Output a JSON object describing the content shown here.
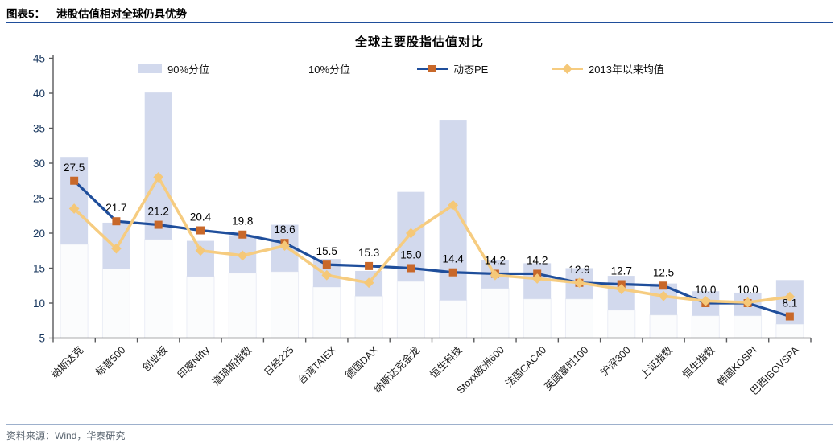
{
  "figure": {
    "tag": "图表5：",
    "title": "港股估值相对全球仍具优势"
  },
  "chart_data": {
    "type": "bar",
    "subtype": "floating-range-bars-with-lines",
    "title": "全球主要股指估值对比",
    "xlabel": "",
    "ylabel": "",
    "ylim": [
      5,
      45
    ],
    "y_ticks": [
      5,
      10,
      15,
      20,
      25,
      30,
      35,
      40,
      45
    ],
    "grid": false,
    "legend_position": "top",
    "legend": {
      "p90": "90%分位",
      "p10": "10%分位",
      "pe": "动态PE",
      "mean": "2013年以来均值"
    },
    "categories": [
      "纳斯达克",
      "标普500",
      "创业板",
      "印度Nifty",
      "道琼斯指数",
      "日经225",
      "台湾TAIEX",
      "德国DAX",
      "纳斯达克金龙",
      "恒生科技",
      "Stoxx欧洲600",
      "法国CAC40",
      "英国富时100",
      "沪深300",
      "上证指数",
      "恒生指数",
      "韩国KOSPI",
      "巴西IBOVSPA"
    ],
    "series": [
      {
        "name": "10%分位",
        "role": "range_low",
        "values": [
          18.4,
          14.9,
          19.1,
          13.8,
          14.3,
          14.5,
          12.3,
          11.0,
          13.1,
          10.4,
          12.1,
          10.6,
          10.6,
          9.0,
          8.3,
          8.2,
          8.2,
          7.0
        ]
      },
      {
        "name": "90%分位",
        "role": "range_high",
        "values": [
          30.9,
          21.5,
          40.1,
          18.9,
          19.7,
          21.2,
          16.3,
          14.6,
          25.9,
          36.2,
          16.2,
          15.7,
          15.0,
          13.9,
          12.8,
          11.7,
          11.5,
          13.3
        ]
      },
      {
        "name": "动态PE",
        "role": "line_with_labels",
        "values": [
          27.5,
          21.7,
          21.2,
          20.4,
          19.8,
          18.6,
          15.5,
          15.3,
          15.0,
          14.4,
          14.2,
          14.2,
          12.9,
          12.7,
          12.5,
          10.0,
          10.0,
          8.1
        ]
      },
      {
        "name": "2013年以来均值",
        "role": "line",
        "values": [
          23.5,
          17.8,
          28.0,
          17.5,
          16.8,
          18.2,
          14.0,
          12.9,
          20.0,
          24.0,
          14.0,
          13.5,
          12.9,
          12.0,
          11.0,
          10.3,
          10.1,
          10.9
        ]
      }
    ],
    "colors": {
      "band": "#D2D9ED",
      "under_band": "#F8F9FC",
      "under_band_edge": "#EBEEF6",
      "pe_line": "#1F4E9B",
      "pe_marker": "#C8682A",
      "mean_line": "#F6CC80",
      "mean_marker": "#F5C878",
      "axis": "#58595B",
      "y_label": "#17365D",
      "x_label": "#1A1A1A",
      "data_label": "#000000"
    }
  },
  "footer": {
    "source": "资料来源：Wind，华泰研究"
  }
}
